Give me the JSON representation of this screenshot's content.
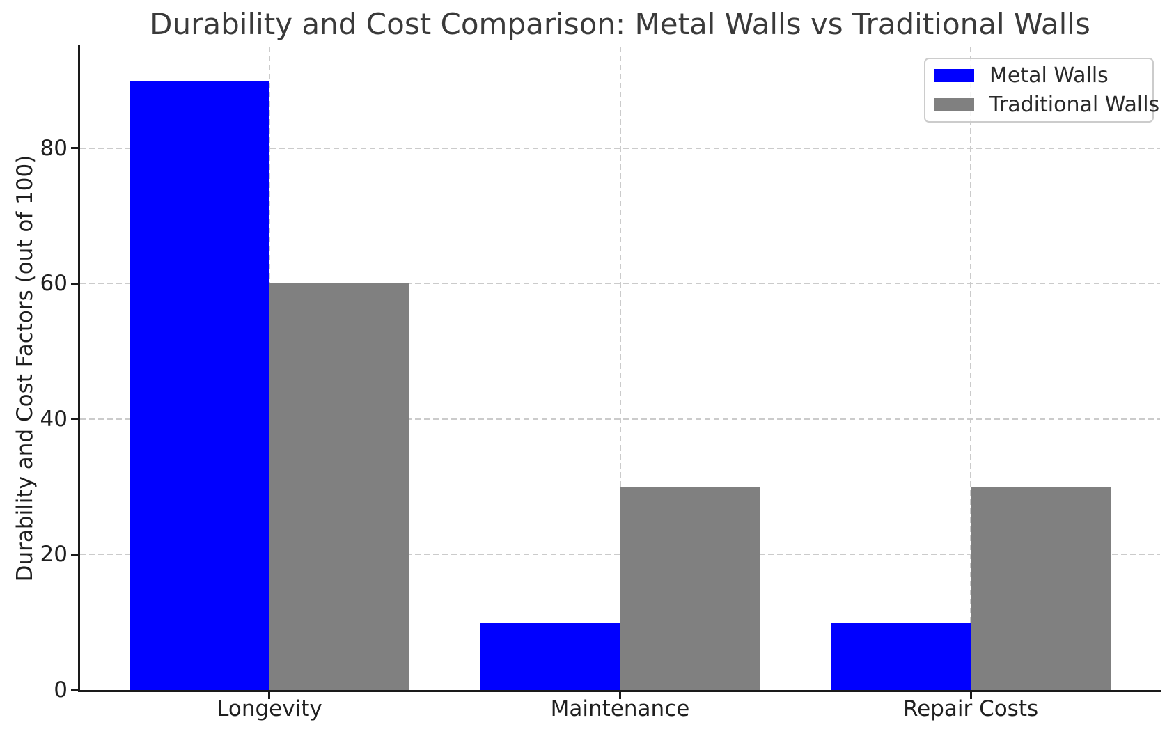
{
  "chart_data": {
    "type": "bar",
    "title": "Durability and Cost Comparison: Metal Walls vs Traditional Walls",
    "ylabel": "Durability and Cost Factors (out of 100)",
    "xlabel": "",
    "categories": [
      "Longevity",
      "Maintenance",
      "Repair Costs"
    ],
    "series": [
      {
        "name": "Metal Walls",
        "color": "#0000ff",
        "values": [
          90,
          10,
          10
        ]
      },
      {
        "name": "Traditional Walls",
        "color": "#808080",
        "values": [
          60,
          30,
          30
        ]
      }
    ],
    "yticks": [
      0,
      20,
      40,
      60,
      80
    ],
    "ylim": [
      0,
      95
    ],
    "bar_width": 0.4,
    "grid": true,
    "grid_style": "dashed",
    "legend_position": "upper right",
    "colors": {
      "spine": "#1a1a1a",
      "grid": "#cbcbcb",
      "title_text": "#3a3a3a",
      "tick_text": "#1f1f1f",
      "legend_border": "#cccccc"
    }
  }
}
